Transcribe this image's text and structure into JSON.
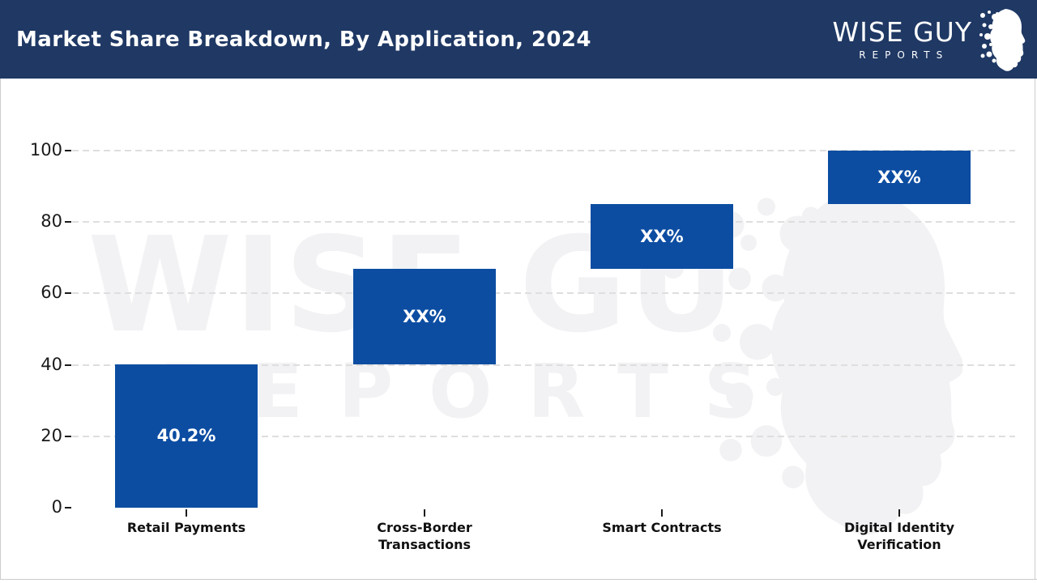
{
  "header": {
    "title": "Market Share Breakdown, By Application, 2024",
    "logo": {
      "name": "WISE GUY",
      "sub": "REPORTS"
    }
  },
  "watermark": {
    "text_top": "WISE GU",
    "text_top_tail": "Y",
    "text_bottom": "REPORTS"
  },
  "colors": {
    "header_bg": "#1F3864",
    "bar": "#0C4DA2",
    "grid": "#DEDEDE",
    "axis": "#1A1A1A",
    "watermark": "#F2F2F4",
    "bar_label": "#FFFFFF"
  },
  "chart_data": {
    "type": "bar",
    "subtype": "waterfall-stacked-breakdown",
    "title": "Market Share Breakdown, By Application, 2024",
    "categories": [
      "Retail Payments",
      "Cross-Border Transactions",
      "Smart Contracts",
      "Digital Identity Verification"
    ],
    "segments": [
      {
        "category": "Retail Payments",
        "from": 0,
        "to": 40.2,
        "value_label": "40.2%",
        "value": 40.2
      },
      {
        "category": "Cross-Border Transactions",
        "from": 40.2,
        "to": 67,
        "value_label": "XX%",
        "value_estimated": 26.8
      },
      {
        "category": "Smart Contracts",
        "from": 67,
        "to": 85,
        "value_label": "XX%",
        "value_estimated": 18
      },
      {
        "category": "Digital Identity Verification",
        "from": 85,
        "to": 100,
        "value_label": "XX%",
        "value_estimated": 15
      }
    ],
    "yticks": [
      0,
      20,
      40,
      60,
      80,
      100
    ],
    "ylim": [
      0,
      106
    ],
    "xlabel": "",
    "ylabel": "",
    "grid": "horizontal-dashed",
    "legend": "none"
  }
}
